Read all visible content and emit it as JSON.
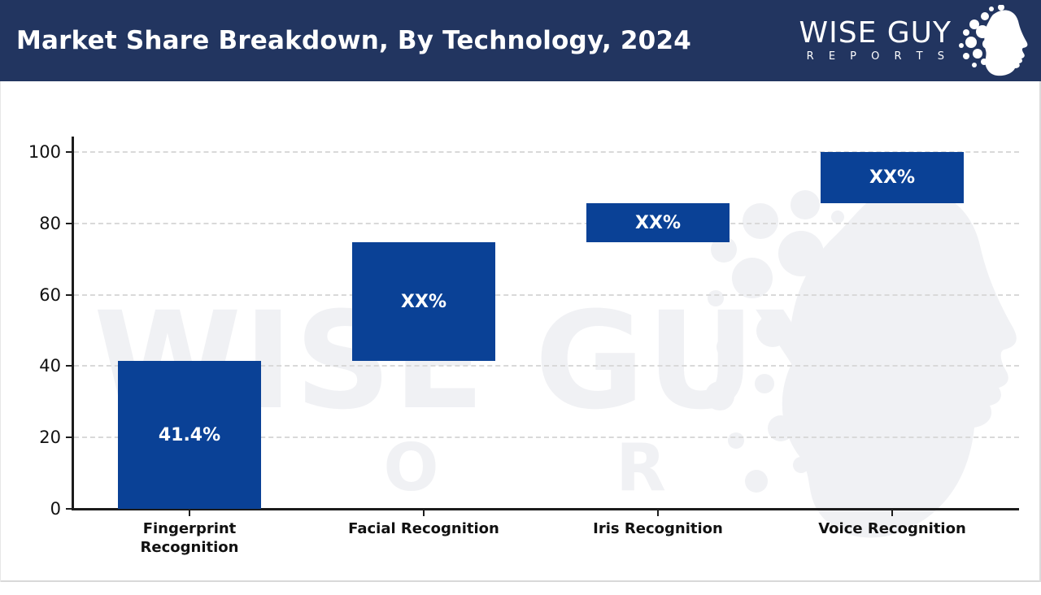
{
  "header": {
    "title": "Market Share Breakdown, By Technology, 2024",
    "bg_color": "#223560",
    "logo": {
      "wordmark": "WISE GUY",
      "subtitle": "R E P O R T S"
    }
  },
  "watermark": {
    "line1": "WISE GUY",
    "line2": "P O R T S"
  },
  "chart_data": {
    "type": "bar",
    "subtype": "waterfall",
    "title": "Market Share Breakdown, By Technology, 2024",
    "categories": [
      "Fingerprint\nRecognition",
      "Facial Recognition",
      "Iris Recognition",
      "Voice Recognition"
    ],
    "segments": [
      {
        "category": "Fingerprint Recognition",
        "start": 0,
        "end": 41.4,
        "label": "41.4%"
      },
      {
        "category": "Facial Recognition",
        "start": 41.4,
        "end": 74.7,
        "label": "XX%"
      },
      {
        "category": "Iris Recognition",
        "start": 74.7,
        "end": 85.6,
        "label": "XX%"
      },
      {
        "category": "Voice Recognition",
        "start": 85.6,
        "end": 100,
        "label": "XX%"
      }
    ],
    "y_ticks": [
      0,
      20,
      40,
      60,
      80,
      100
    ],
    "ylim": [
      0,
      104.5
    ],
    "xlabel": "",
    "ylabel": "",
    "grid": "horizontal-dashed",
    "legend": "none",
    "colors": {
      "bar": "#0a4196",
      "grid": "#d9d9d9",
      "axis": "#1c1c1c",
      "bar_label": "#ffffff",
      "tick_label": "#111111",
      "header_bg": "#223560",
      "watermark": "#f0f1f4"
    }
  }
}
